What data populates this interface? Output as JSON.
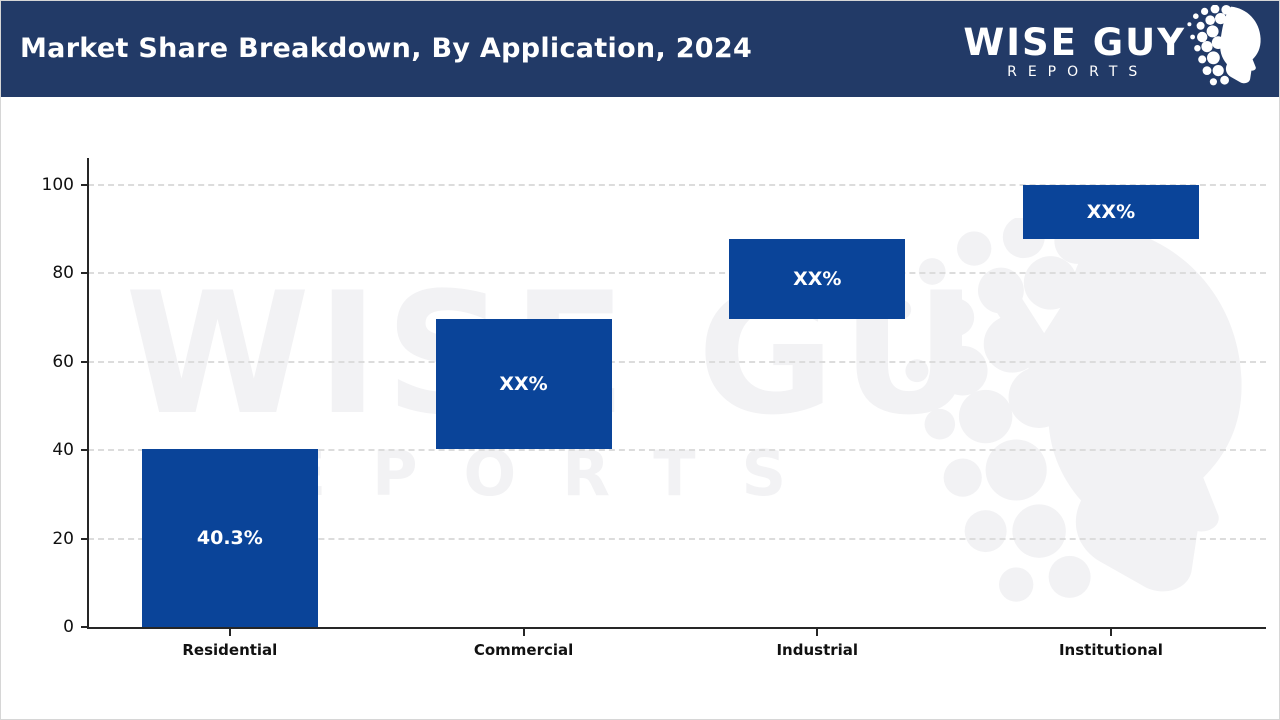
{
  "header": {
    "title": "Market Share Breakdown, By Application, 2024",
    "logo": {
      "line1": "WISE GUY",
      "line2": "REPORTS"
    }
  },
  "watermark": {
    "line1": "WISE GUY",
    "line2": "REPORTS"
  },
  "colors": {
    "header_bg": "#223a67",
    "bar": "#0a4499",
    "grid": "#dcdcdc",
    "axis": "#262626",
    "bar_label": "#ffffff",
    "watermark": "#f2f2f4"
  },
  "chart_data": {
    "type": "bar",
    "subtype": "waterfall",
    "title": "Market Share Breakdown, By Application, 2024",
    "categories": [
      "Residential",
      "Commercial",
      "Industrial",
      "Institutional"
    ],
    "segments": [
      {
        "category": "Residential",
        "start": 0,
        "end": 40.3,
        "value": 40.3,
        "label": "40.3%"
      },
      {
        "category": "Commercial",
        "start": 40.3,
        "end": 69.7,
        "value": 29.4,
        "label": "XX%"
      },
      {
        "category": "Industrial",
        "start": 69.7,
        "end": 87.6,
        "value": 17.9,
        "label": "XX%"
      },
      {
        "category": "Institutional",
        "start": 87.6,
        "end": 100.0,
        "value": 12.4,
        "label": "XX%"
      }
    ],
    "yticks": [
      0,
      20,
      40,
      60,
      80,
      100
    ],
    "ylim": [
      0,
      106
    ],
    "xlabel": "",
    "ylabel": "",
    "grid": "dashed-horizontal",
    "legend": "none",
    "bar_label_position": "center"
  }
}
